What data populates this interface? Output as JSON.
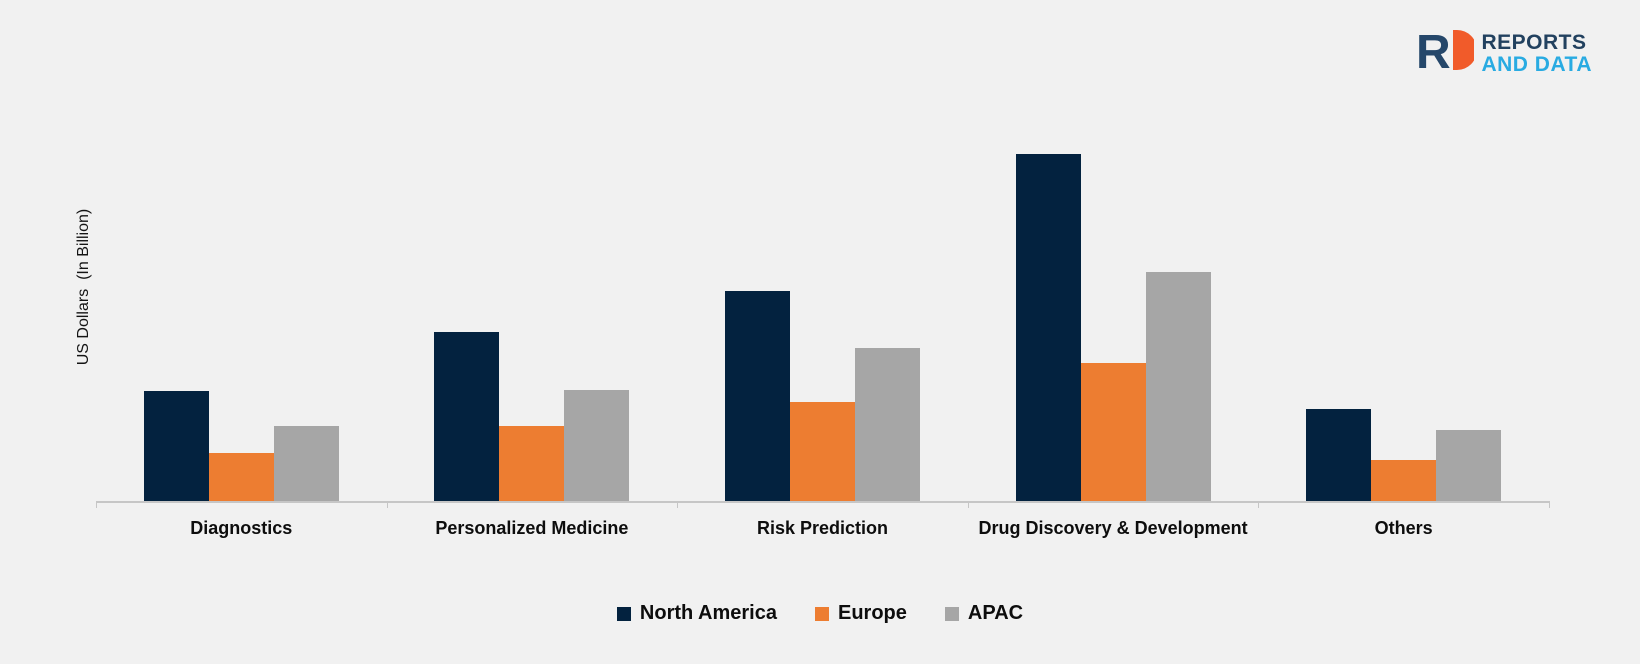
{
  "page": {
    "background_color": "#f1f1f1"
  },
  "logo": {
    "line1": "REPORTS",
    "line2": "AND DATA",
    "colors": {
      "mark_navy": "#25476a",
      "mark_orange": "#f15b2a",
      "line1_navy": "#22415f",
      "line2_blue": "#29abe2"
    }
  },
  "chart_data": {
    "type": "bar",
    "title": "",
    "xlabel": "",
    "ylabel": "US Dollars  (In Billion)",
    "categories": [
      "Diagnostics",
      "Personalized Medicine",
      "Risk Prediction",
      "Drug Discovery & Development",
      "Others"
    ],
    "series": [
      {
        "name": "North America",
        "color": "#03223f",
        "values": [
          1.1,
          1.69,
          2.1,
          3.47,
          0.92
        ]
      },
      {
        "name": "Europe",
        "color": "#ed7d31",
        "values": [
          0.48,
          0.75,
          0.99,
          1.38,
          0.41
        ]
      },
      {
        "name": "APAC",
        "color": "#a6a6a6",
        "values": [
          0.75,
          1.11,
          1.53,
          2.29,
          0.71
        ]
      }
    ],
    "ylim": [
      0,
      4.2
    ],
    "y_tick_labels_visible": false,
    "gridlines": false,
    "legend_position": "bottom",
    "axis_color": "#c6c6c6",
    "units_note": "values estimated from bar heights; y-axis has no tick labels"
  }
}
